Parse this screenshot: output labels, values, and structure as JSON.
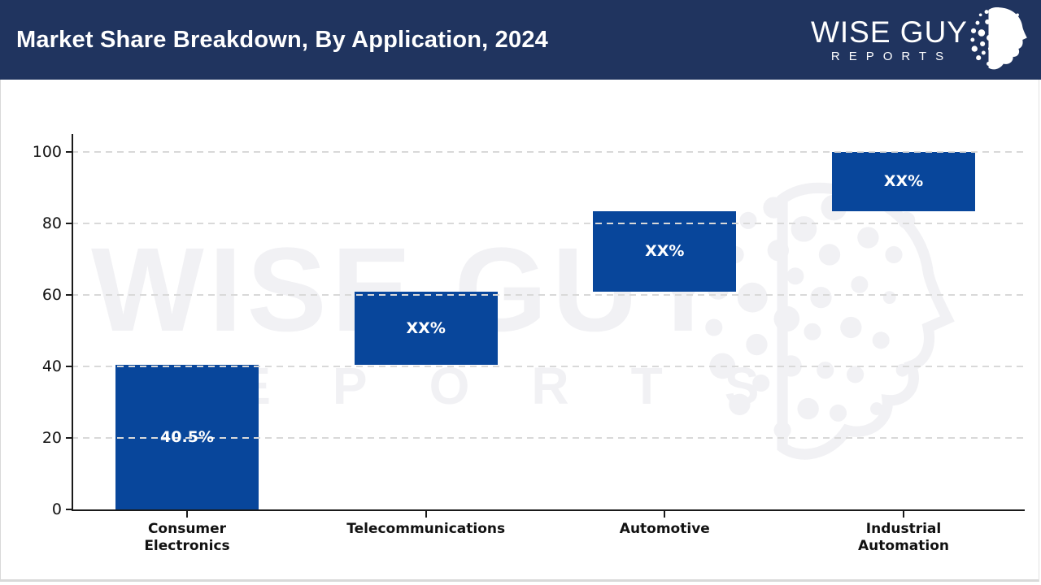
{
  "header": {
    "title": "Market Share Breakdown, By Application, 2024",
    "logo": {
      "line1": "WISE GUY",
      "line2": "REPORTS"
    },
    "bg_color": "#20345f"
  },
  "watermark": {
    "line1": "WISE GUY",
    "line2": "REPORTS"
  },
  "chart_data": {
    "type": "bar",
    "subtype": "waterfall",
    "title": "Market Share Breakdown, By Application, 2024",
    "categories": [
      {
        "name": "Consumer Electronics",
        "lines": [
          "Consumer",
          "Electronics"
        ]
      },
      {
        "name": "Telecommunications",
        "lines": [
          "Telecommunications"
        ]
      },
      {
        "name": "Automotive",
        "lines": [
          "Automotive"
        ]
      },
      {
        "name": "Industrial Automation",
        "lines": [
          "Industrial",
          "Automation"
        ]
      }
    ],
    "segments": [
      {
        "category": "Consumer Electronics",
        "start": 0,
        "end": 40.5,
        "label": "40.5%"
      },
      {
        "category": "Telecommunications",
        "start": 40.5,
        "end": 61,
        "label": "XX%"
      },
      {
        "category": "Automotive",
        "start": 61,
        "end": 83.5,
        "label": "XX%"
      },
      {
        "category": "Industrial Automation",
        "start": 83.5,
        "end": 100,
        "label": "XX%"
      }
    ],
    "ylabel": "",
    "xlabel": "",
    "yticks": [
      0,
      20,
      40,
      60,
      80,
      100
    ],
    "ylim": [
      0,
      105
    ],
    "bar_color": "#08469b",
    "grid": "horizontal-dashed",
    "grid_color": "#d9d9d9",
    "legend": "none"
  }
}
